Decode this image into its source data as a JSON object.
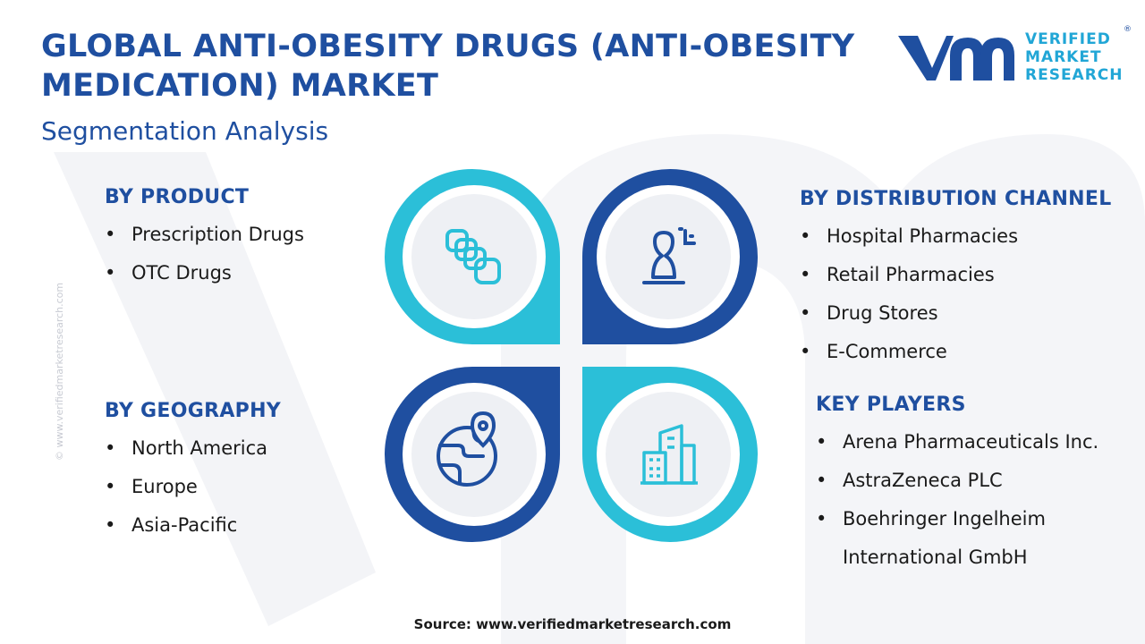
{
  "title": "GLOBAL ANTI-OBESITY DRUGS (ANTI-OBESITY MEDICATION) MARKET",
  "subtitle": "Segmentation Analysis",
  "logo": {
    "line1": "VERIFIED",
    "line2": "MARKET",
    "line3": "RESEARCH",
    "reg": "®"
  },
  "watermark": "© www.verifiedmarketresearch.com",
  "segments": {
    "product": {
      "heading": "BY PRODUCT",
      "items": [
        "Prescription Drugs",
        "OTC Drugs"
      ]
    },
    "geography": {
      "heading": "BY GEOGRAPHY",
      "items": [
        "North America",
        "Europe",
        "Asia-Pacific"
      ]
    },
    "distribution": {
      "heading": "BY DISTRIBUTION CHANNEL",
      "items": [
        "Hospital Pharmacies",
        "Retail Pharmacies",
        "Drug Stores",
        "E-Commerce"
      ]
    },
    "key_players": {
      "heading": "KEY PLAYERS",
      "items": [
        "Arena Pharmaceuticals Inc.",
        "AstraZeneca PLC",
        "Boehringer Ingelheim International GmbH"
      ]
    }
  },
  "icons": {
    "top_left": "capsules-icon",
    "top_right": "user-analytics-icon",
    "bottom_left": "globe-location-icon",
    "bottom_right": "buildings-icon"
  },
  "colors": {
    "dark_blue": "#1f4fa0",
    "light_blue": "#2bbfd8",
    "accent_teal": "#21a6d6"
  },
  "source": "Source: www.verifiedmarketresearch.com"
}
